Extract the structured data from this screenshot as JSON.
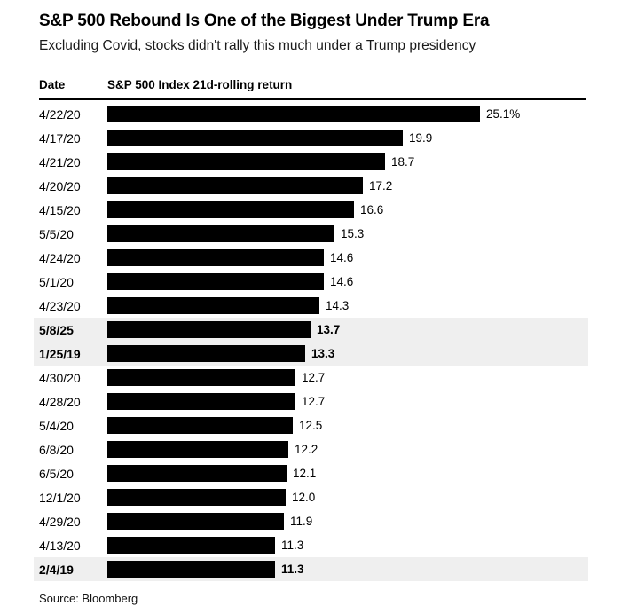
{
  "chart_data": {
    "type": "bar",
    "orientation": "horizontal",
    "title": "S&P 500 Rebound Is One of the Biggest Under Trump Era",
    "subtitle": "Excluding Covid, stocks didn't rally this much under a Trump presidency",
    "columns": {
      "date_header": "Date",
      "value_header": "S&P 500 Index 21d-rolling return"
    },
    "unit": "%",
    "xlim": [
      0,
      25.1
    ],
    "grid": false,
    "legend": false,
    "rows": [
      {
        "date": "4/22/20",
        "value": 25.1,
        "label": "25.1%",
        "highlighted": false
      },
      {
        "date": "4/17/20",
        "value": 19.9,
        "label": "19.9",
        "highlighted": false
      },
      {
        "date": "4/21/20",
        "value": 18.7,
        "label": "18.7",
        "highlighted": false
      },
      {
        "date": "4/20/20",
        "value": 17.2,
        "label": "17.2",
        "highlighted": false
      },
      {
        "date": "4/15/20",
        "value": 16.6,
        "label": "16.6",
        "highlighted": false
      },
      {
        "date": "5/5/20",
        "value": 15.3,
        "label": "15.3",
        "highlighted": false
      },
      {
        "date": "4/24/20",
        "value": 14.6,
        "label": "14.6",
        "highlighted": false
      },
      {
        "date": "5/1/20",
        "value": 14.6,
        "label": "14.6",
        "highlighted": false
      },
      {
        "date": "4/23/20",
        "value": 14.3,
        "label": "14.3",
        "highlighted": false
      },
      {
        "date": "5/8/25",
        "value": 13.7,
        "label": "13.7",
        "highlighted": true
      },
      {
        "date": "1/25/19",
        "value": 13.3,
        "label": "13.3",
        "highlighted": true
      },
      {
        "date": "4/30/20",
        "value": 12.7,
        "label": "12.7",
        "highlighted": false
      },
      {
        "date": "4/28/20",
        "value": 12.7,
        "label": "12.7",
        "highlighted": false
      },
      {
        "date": "5/4/20",
        "value": 12.5,
        "label": "12.5",
        "highlighted": false
      },
      {
        "date": "6/8/20",
        "value": 12.2,
        "label": "12.2",
        "highlighted": false
      },
      {
        "date": "6/5/20",
        "value": 12.1,
        "label": "12.1",
        "highlighted": false
      },
      {
        "date": "12/1/20",
        "value": 12.0,
        "label": "12.0",
        "highlighted": false
      },
      {
        "date": "4/29/20",
        "value": 11.9,
        "label": "11.9",
        "highlighted": false
      },
      {
        "date": "4/13/20",
        "value": 11.3,
        "label": "11.3",
        "highlighted": false
      },
      {
        "date": "2/4/19",
        "value": 11.3,
        "label": "11.3",
        "highlighted": true
      }
    ],
    "source": "Source: Bloomberg"
  },
  "colors": {
    "bar": "#000000",
    "highlight_row_bg": "#efefef",
    "text": "#000000",
    "rule": "#000000"
  }
}
